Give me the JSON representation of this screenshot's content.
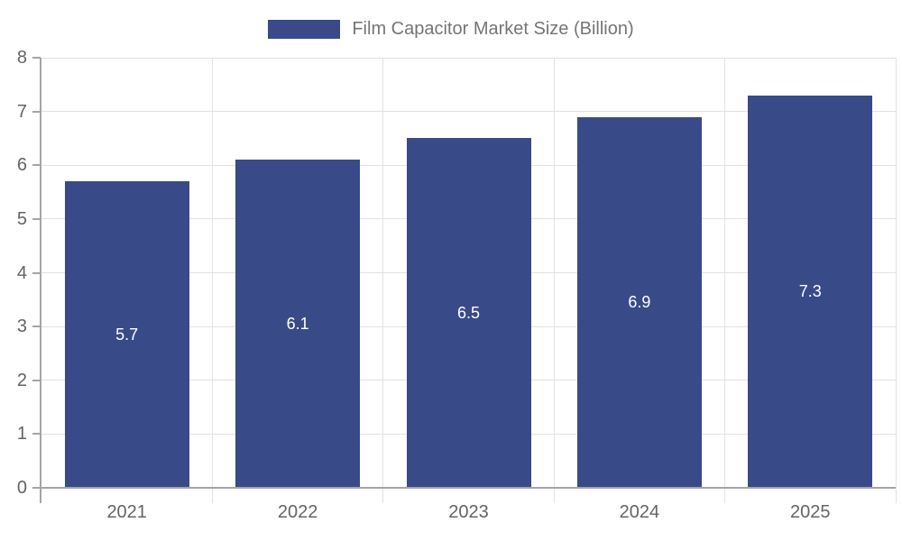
{
  "legend": {
    "label": "Film Capacitor Market Size (Billion)"
  },
  "colors": {
    "bar": "#394a88",
    "legend_text": "#757575",
    "axis_label": "#646464",
    "grid": "#e2e2e2",
    "axis_line": "#a5a5a5",
    "value_label": "#ffffff",
    "background": "#ffffff"
  },
  "chart_data": {
    "type": "bar",
    "title": "Film Capacitor Market Size (Billion)",
    "categories": [
      "2021",
      "2022",
      "2023",
      "2024",
      "2025"
    ],
    "values": [
      5.7,
      6.1,
      6.5,
      6.9,
      7.3
    ],
    "series": [
      {
        "name": "Film Capacitor Market Size (Billion)",
        "values": [
          5.7,
          6.1,
          6.5,
          6.9,
          7.3
        ]
      }
    ],
    "xlabel": "",
    "ylabel": "",
    "ylim": [
      0,
      8
    ],
    "yticks": [
      0,
      1,
      2,
      3,
      4,
      5,
      6,
      7,
      8
    ],
    "grid": true,
    "legend_position": "top",
    "value_label_position": "inside-center"
  }
}
